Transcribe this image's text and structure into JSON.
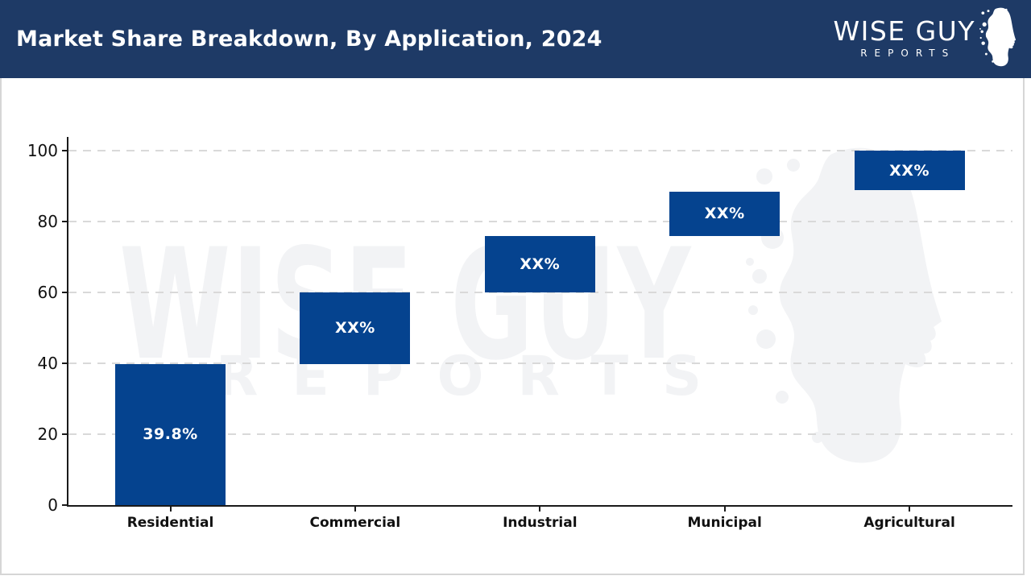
{
  "header": {
    "title": "Market Share Breakdown, By Application, 2024",
    "bg_color": "#1e3a66",
    "logo": {
      "line1": "WISE GUY",
      "line2": "REPORTS"
    }
  },
  "watermark": {
    "line1": "WISE GUY",
    "line2": "REPORTS",
    "color": "#f2f3f5"
  },
  "chart_data": {
    "type": "bar",
    "subtype": "waterfall",
    "title": "Market Share Breakdown, By Application, 2024",
    "categories": [
      "Residential",
      "Commercial",
      "Industrial",
      "Municipal",
      "Agricultural"
    ],
    "segments": [
      {
        "category": "Residential",
        "start": 0,
        "end": 39.8,
        "label": "39.8%"
      },
      {
        "category": "Commercial",
        "start": 39.8,
        "end": 60.0,
        "label": "XX%"
      },
      {
        "category": "Industrial",
        "start": 60.0,
        "end": 75.8,
        "label": "XX%"
      },
      {
        "category": "Municipal",
        "start": 76.0,
        "end": 88.5,
        "label": "XX%"
      },
      {
        "category": "Agricultural",
        "start": 88.8,
        "end": 100.0,
        "label": "XX%"
      }
    ],
    "xlabel": "",
    "ylabel": "",
    "ylim": [
      0,
      100
    ],
    "yticks": [
      0,
      20,
      40,
      60,
      80,
      100
    ],
    "grid": "dashed-horizontal",
    "legend": "none",
    "bar_color": "#05438f",
    "bar_label_color": "#ffffff",
    "axis_color": "#1a1a1a"
  }
}
